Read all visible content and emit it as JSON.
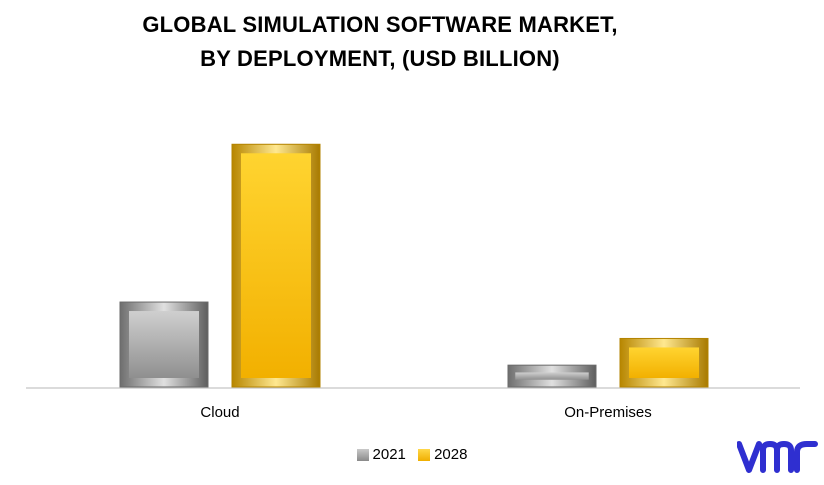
{
  "chart_data": {
    "type": "bar",
    "title_line1": "GLOBAL SIMULATION SOFTWARE MARKET,",
    "title_line2": "BY DEPLOYMENT, (USD BILLION)",
    "categories": [
      "Cloud",
      "On-Premises"
    ],
    "series": [
      {
        "name": "2021",
        "values": [
          3.5,
          0.9
        ],
        "color": "#9e9e9e"
      },
      {
        "name": "2028",
        "values": [
          10.0,
          2.0
        ],
        "color": "#ffc000"
      }
    ],
    "ylim": [
      0,
      11
    ],
    "grid": false,
    "legend": "bottom"
  },
  "logo": {
    "text": "vmr",
    "color": "#2f2fd0"
  }
}
